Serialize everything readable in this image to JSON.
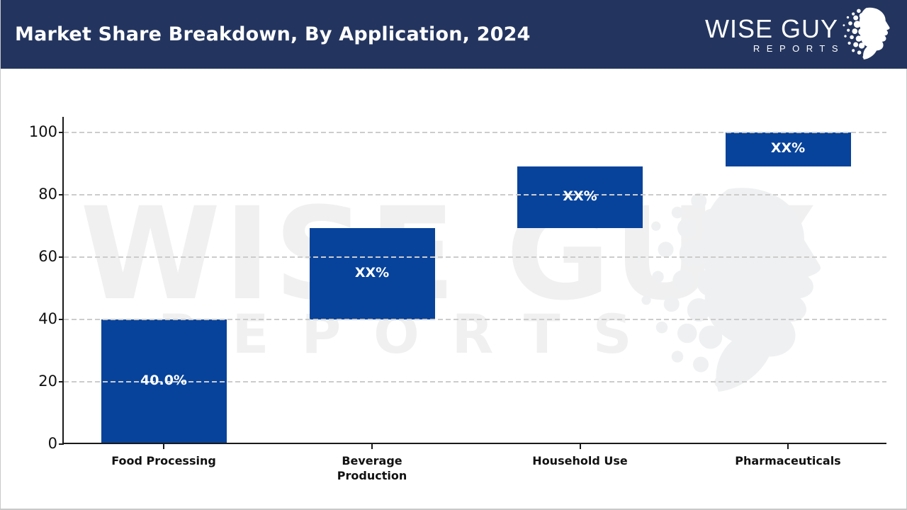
{
  "header": {
    "title": "Market Share Breakdown, By Application, 2024",
    "logo": {
      "line1": "WISE GUY",
      "line2": "REPORTS"
    }
  },
  "watermark": {
    "line1": "WISE GUY",
    "line2": "REPORTS"
  },
  "chart_data": {
    "type": "bar",
    "subtype": "waterfall",
    "title": "Market Share Breakdown, By Application, 2024",
    "categories": [
      "Food Processing",
      "Beverage Production",
      "Household Use",
      "Pharmaceuticals"
    ],
    "series": [
      {
        "name": "Market share (%)",
        "segments": [
          {
            "category": "Food Processing",
            "start": 0,
            "end": 40,
            "value": 40.0,
            "label": "40.0%"
          },
          {
            "category": "Beverage Production",
            "start": 40,
            "end": 69.3,
            "value": 29.3,
            "label": "XX%"
          },
          {
            "category": "Household Use",
            "start": 69.3,
            "end": 89.1,
            "value": 19.8,
            "label": "XX%"
          },
          {
            "category": "Pharmaceuticals",
            "start": 89.1,
            "end": 100,
            "value": 10.9,
            "label": "XX%"
          }
        ]
      }
    ],
    "ylim": [
      0,
      100
    ],
    "yticks": [
      0,
      20,
      40,
      60,
      80,
      100
    ],
    "ytick_labels": [
      "0",
      "20",
      "40",
      "60",
      "80",
      "100"
    ],
    "xlabel": "",
    "ylabel": "",
    "grid": "horizontal dashed, drawn over bars",
    "legend": "none",
    "bar_color": "#07439b",
    "bar_label_color": "#ffffff"
  },
  "colors": {
    "header_bg": "#23355f",
    "header_text": "#ffffff",
    "bar": "#07439b",
    "grid": "#cccccc",
    "axis": "#1a1a1a",
    "watermark": "#f0f0f0",
    "page_border": "#c9c9c9"
  }
}
